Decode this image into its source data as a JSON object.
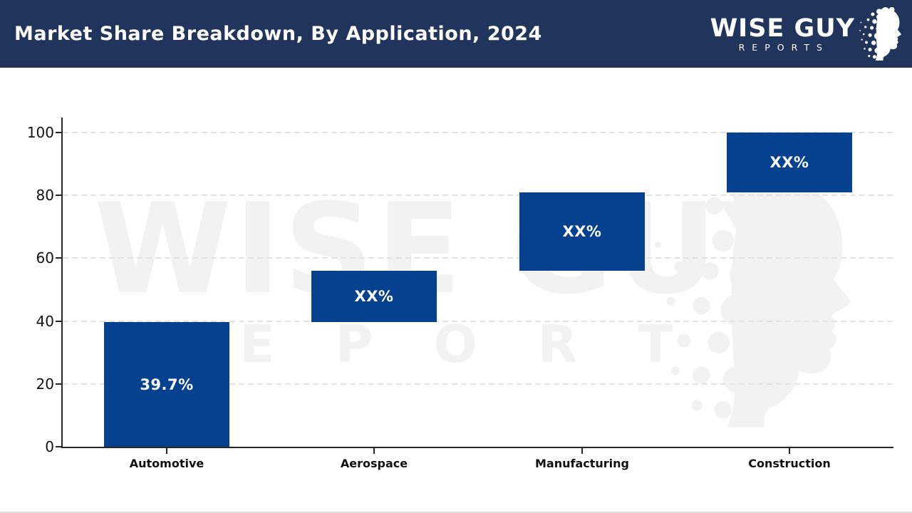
{
  "header": {
    "title": "Market Share Breakdown, By Application, 2024",
    "logo": {
      "line1": "WISE GUY",
      "line2": "REPORTS"
    }
  },
  "watermark": {
    "line1": "WISE GUY",
    "line2": "R E P O R T S"
  },
  "colors": {
    "header_bg": "#21345c",
    "bar": "#05418f",
    "axis": "#262626",
    "grid": "#e2e2e2",
    "tick_text": "#111111",
    "bar_label_text": "#ffffff",
    "watermark": "#f2f2f2"
  },
  "chart_data": {
    "type": "bar",
    "subtype": "waterfall",
    "title": "Market Share Breakdown, By Application, 2024",
    "categories": [
      "Automotive",
      "Aerospace",
      "Manufacturing",
      "Construction"
    ],
    "segments": [
      {
        "category": "Automotive",
        "start": 0,
        "end": 39.7,
        "label": "39.7%"
      },
      {
        "category": "Aerospace",
        "start": 39.7,
        "end": 56.1,
        "label": "XX%"
      },
      {
        "category": "Manufacturing",
        "start": 56.1,
        "end": 80.9,
        "label": "XX%"
      },
      {
        "category": "Construction",
        "start": 80.9,
        "end": 100,
        "label": "XX%"
      }
    ],
    "ylim": [
      0,
      100
    ],
    "yticks": [
      0,
      20,
      40,
      60,
      80,
      100
    ],
    "xlabel": "",
    "ylabel": "",
    "grid": "horizontal-dashed",
    "legend": "none",
    "bar_color": "#05418f"
  }
}
